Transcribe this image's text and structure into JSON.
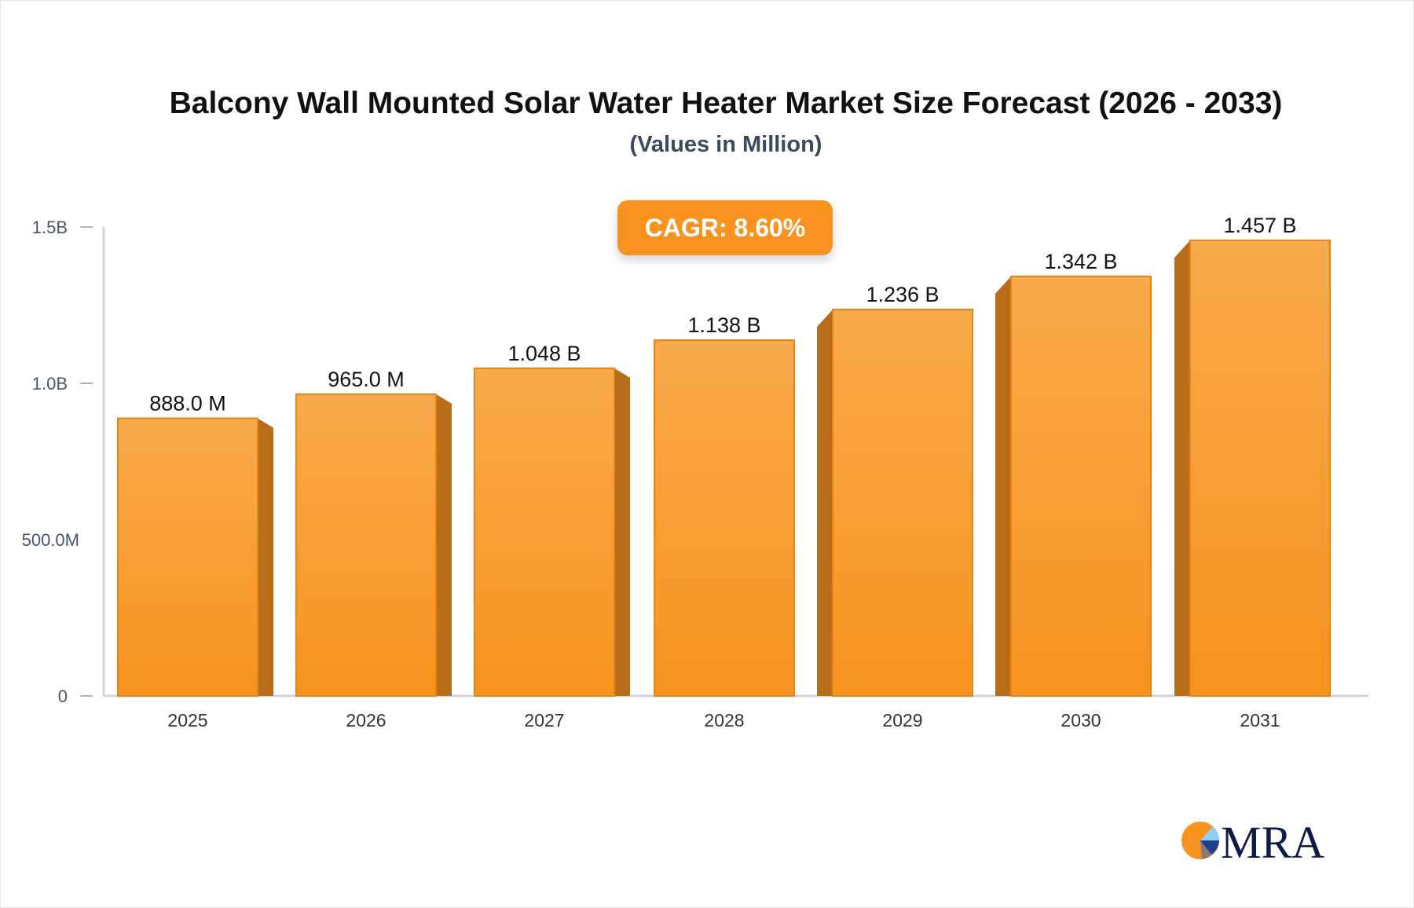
{
  "chart_data": {
    "type": "bar",
    "title": "Balcony Wall Mounted Solar Water Heater Market Size Forecast (2026 - 2033)",
    "subtitle": "(Values in Million)",
    "annotation": "CAGR: 8.60%",
    "categories": [
      "2025",
      "2026",
      "2027",
      "2028",
      "2029",
      "2030",
      "2031"
    ],
    "values": [
      888.0,
      965.0,
      1048,
      1138,
      1236,
      1342,
      1457
    ],
    "value_unit": "Million",
    "data_labels": [
      "888.0 M",
      "965.0 M",
      "1.048 B",
      "1.138 B",
      "1.236 B",
      "1.342 B",
      "1.457 B"
    ],
    "y_ticks": [
      {
        "value": 0,
        "label": "0"
      },
      {
        "value": 500,
        "label": "500.0M"
      },
      {
        "value": 1000,
        "label": "1.0B"
      },
      {
        "value": 1500,
        "label": "1.5B"
      }
    ],
    "ylim": [
      0,
      1500
    ],
    "grid": false,
    "legend": "none",
    "colors": {
      "bar_top": "#f8aa4c",
      "bar_bottom": "#f7931e",
      "bar_edge": "#e58516",
      "bar_side": "#b96d18",
      "axis": "#d3d5db",
      "cagr_box": "#f7931e"
    }
  },
  "logo": {
    "text": "MRA"
  }
}
